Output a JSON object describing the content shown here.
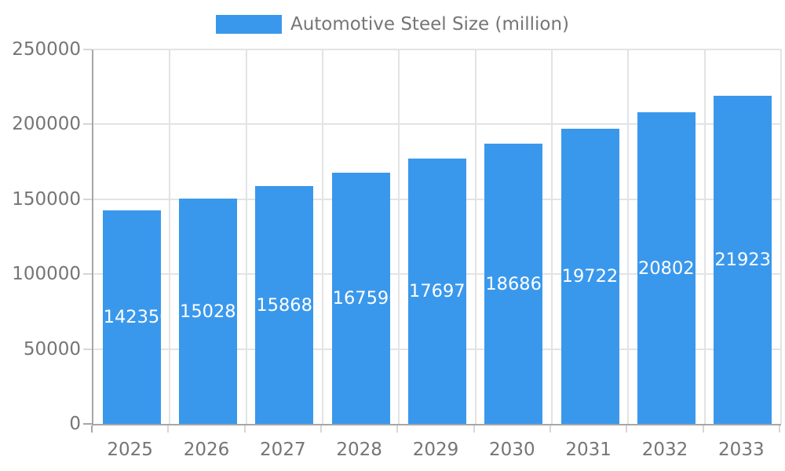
{
  "chart_data": {
    "type": "bar",
    "title": "Automotive Steel Size (million)",
    "legend": [
      "Automotive Steel Size (million)"
    ],
    "legend_position": "top",
    "categories": [
      "2025",
      "2026",
      "2027",
      "2028",
      "2029",
      "2030",
      "2031",
      "2032",
      "2033"
    ],
    "series": [
      {
        "name": "Automotive Steel Size (million)",
        "values": [
          142350,
          150280,
          158682,
          167596,
          176972,
          186861,
          197221,
          208020,
          219230
        ]
      }
    ],
    "data_labels": [
      "142350",
      "150280",
      "158682",
      "167596",
      "176972",
      "186861",
      "197221",
      "208020",
      "219230"
    ],
    "xlabel": "",
    "ylabel": "",
    "ylim": [
      0,
      250000
    ],
    "ytick_step": 50000,
    "ytick_labels": [
      "0",
      "50000",
      "100000",
      "150000",
      "200000",
      "250000"
    ],
    "grid": true,
    "colors": {
      "bar": "#3a98ec",
      "bar_label_text": "#ffffff",
      "axis_line": "#a6a6a6",
      "gridline": "#e3e3e3",
      "tick": "#d6d6d6",
      "text": "#757575",
      "background": "#ffffff"
    }
  }
}
